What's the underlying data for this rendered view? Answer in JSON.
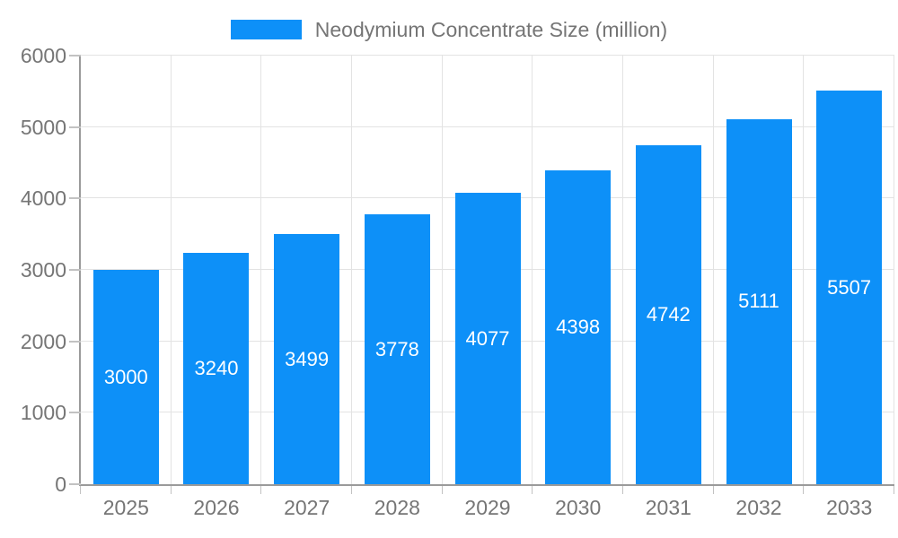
{
  "legend": {
    "label": "Neodymium Concentrate Size (million)"
  },
  "colors": {
    "bar": "#0d90f8",
    "axis_text": "#757575",
    "value_text": "#ffffff",
    "grid": "#e3e3e3",
    "axis_line": "#9a9a9a",
    "tick": "#c2c2c2"
  },
  "chart_data": {
    "type": "bar",
    "categories": [
      "2025",
      "2026",
      "2027",
      "2028",
      "2029",
      "2030",
      "2031",
      "2032",
      "2033"
    ],
    "values": [
      3000,
      3240,
      3499,
      3778,
      4077,
      4398,
      4742,
      5111,
      5507
    ],
    "series": [
      {
        "name": "Neodymium Concentrate Size (million)",
        "values": [
          3000,
          3240,
          3499,
          3778,
          4077,
          4398,
          4742,
          5111,
          5507
        ]
      }
    ],
    "yticks": [
      0,
      1000,
      2000,
      3000,
      4000,
      5000,
      6000
    ],
    "ylim": [
      0,
      6000
    ],
    "grid": true,
    "legend_position": "top",
    "value_labels": "inside-center-white"
  }
}
